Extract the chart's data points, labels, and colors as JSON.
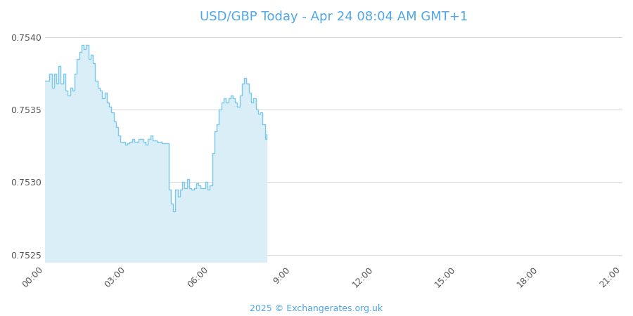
{
  "title": "USD/GBP Today - Apr 24 08:04 AM GMT+1",
  "title_color": "#4da6e8",
  "footer": "2025 © Exchangerates.org.uk",
  "footer_color": "#4da6e8",
  "ylim": [
    0.75245,
    0.75405
  ],
  "yticks": [
    0.7525,
    0.753,
    0.7535,
    0.754
  ],
  "xticks": [
    0,
    3,
    6,
    9,
    12,
    15,
    18,
    21
  ],
  "xtick_labels": [
    "00:00",
    "03:00",
    "06:00",
    "9:00",
    "12:00",
    "15:00",
    "18:00",
    "21:00"
  ],
  "line_color": "#7ec8e8",
  "fill_color": "#daeef8",
  "fill_alpha": 1.0,
  "background_color": "#ffffff",
  "grid_color": "#d8d8d8",
  "xlim": [
    0,
    21
  ],
  "data_x": [
    0.0,
    0.1,
    0.17,
    0.25,
    0.33,
    0.42,
    0.5,
    0.58,
    0.67,
    0.75,
    0.83,
    0.92,
    1.0,
    1.08,
    1.17,
    1.25,
    1.33,
    1.42,
    1.5,
    1.58,
    1.67,
    1.75,
    1.83,
    1.92,
    2.0,
    2.08,
    2.17,
    2.25,
    2.33,
    2.42,
    2.5,
    2.58,
    2.67,
    2.75,
    2.83,
    2.92,
    3.0,
    3.08,
    3.17,
    3.25,
    3.33,
    3.42,
    3.5,
    3.58,
    3.67,
    3.75,
    3.83,
    3.92,
    4.0,
    4.08,
    4.17,
    4.25,
    4.33,
    4.42,
    4.5,
    4.58,
    4.67,
    4.75,
    4.83,
    4.92,
    5.0,
    5.08,
    5.17,
    5.25,
    5.33,
    5.42,
    5.5,
    5.58,
    5.67,
    5.75,
    5.83,
    5.92,
    6.0,
    6.08,
    6.17,
    6.25,
    6.33,
    6.42,
    6.5,
    6.58,
    6.67,
    6.75,
    6.83,
    6.92,
    7.0,
    7.08,
    7.17,
    7.25,
    7.33,
    7.42,
    7.5,
    7.58,
    7.67,
    7.75,
    7.83,
    7.92,
    8.0,
    8.07
  ],
  "data_y": [
    0.7537,
    0.7537,
    0.75375,
    0.75365,
    0.75375,
    0.75368,
    0.7538,
    0.75368,
    0.75375,
    0.75363,
    0.7536,
    0.75365,
    0.75363,
    0.75375,
    0.75385,
    0.7539,
    0.75395,
    0.75392,
    0.75395,
    0.75385,
    0.75388,
    0.75382,
    0.7537,
    0.75365,
    0.75363,
    0.75358,
    0.75362,
    0.75355,
    0.75352,
    0.75348,
    0.75342,
    0.75338,
    0.75332,
    0.75328,
    0.75328,
    0.75326,
    0.75327,
    0.75328,
    0.7533,
    0.75328,
    0.75328,
    0.7533,
    0.7533,
    0.75328,
    0.75326,
    0.7533,
    0.75332,
    0.75329,
    0.75329,
    0.75328,
    0.75328,
    0.75327,
    0.75327,
    0.75327,
    0.75295,
    0.75285,
    0.7528,
    0.75295,
    0.7529,
    0.75295,
    0.753,
    0.75296,
    0.75302,
    0.75296,
    0.75295,
    0.75296,
    0.75299,
    0.75298,
    0.75296,
    0.75296,
    0.753,
    0.75295,
    0.75298,
    0.7532,
    0.75335,
    0.7534,
    0.7535,
    0.75355,
    0.75358,
    0.75355,
    0.75358,
    0.7536,
    0.75358,
    0.75355,
    0.75352,
    0.7536,
    0.75368,
    0.75372,
    0.75368,
    0.75362,
    0.75355,
    0.75358,
    0.7535,
    0.75347,
    0.75348,
    0.7534,
    0.7533,
    0.75333
  ]
}
